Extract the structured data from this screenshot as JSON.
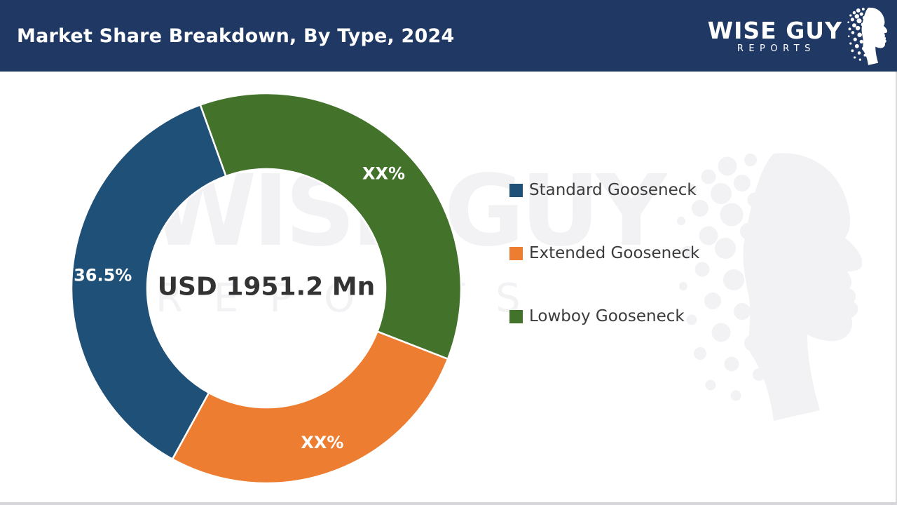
{
  "header": {
    "title": "Market Share Breakdown, By Type, 2024",
    "brand": {
      "line1": "WISE GUY",
      "line2": "REPORTS"
    }
  },
  "watermark": {
    "line1": "WISE GUY",
    "line2": "REPORTS"
  },
  "colors": {
    "header_background": "#203864",
    "title_text": "#ffffff",
    "center_text": "#333333",
    "legend_text": "#3b3b3b",
    "slice_gap": "#ffffff",
    "watermark": "#f2f2f4"
  },
  "chart_data": {
    "type": "pie",
    "subtype": "donut",
    "title": "Market Share Breakdown, By Type, 2024",
    "center_label": "USD 1951.2 Mn",
    "legend_position": "right",
    "slices": [
      {
        "name": "Standard Gooseneck",
        "value": 36.5,
        "label": "36.5%",
        "color": "#1f5078"
      },
      {
        "name": "Extended Gooseneck",
        "value": 27.1,
        "label": "XX%",
        "color": "#ed7d31"
      },
      {
        "name": "Lowboy Gooseneck",
        "value": 36.4,
        "label": "XX%",
        "color": "#43722b"
      }
    ],
    "start_angle_deg": 109.8,
    "direction": "counterclockwise",
    "outer_radius": 278,
    "inner_radius": 170,
    "label_radius": 234
  }
}
